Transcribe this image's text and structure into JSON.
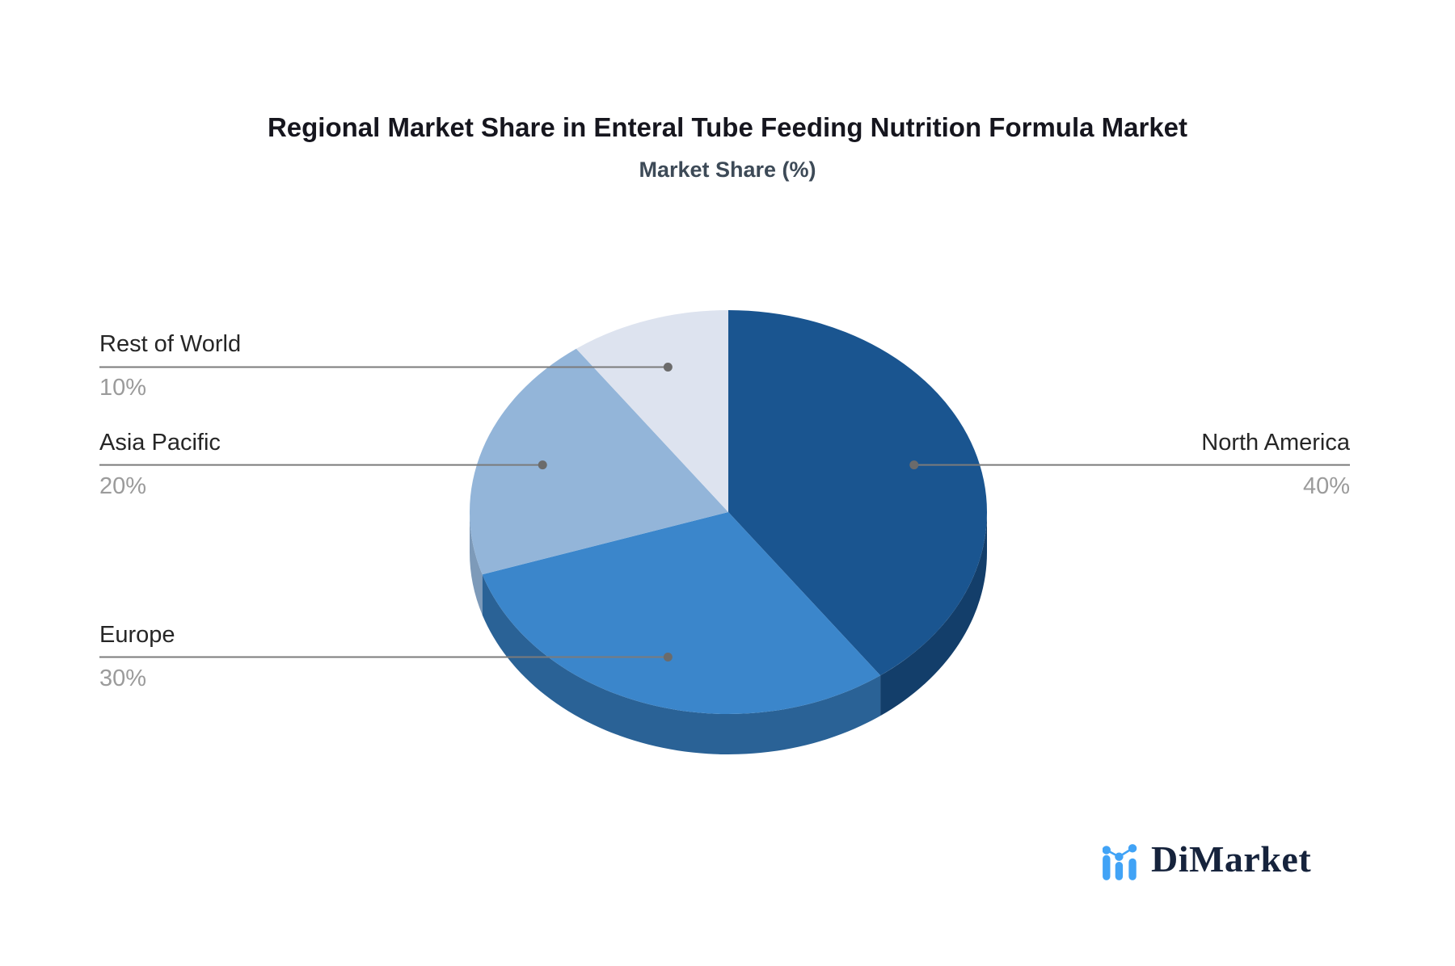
{
  "header": {
    "title": "Regional Market Share in Enteral Tube Feeding Nutrition Formula Market",
    "subtitle": "Market Share (%)"
  },
  "chart_data": {
    "type": "pie",
    "title": "Regional Market Share in Enteral Tube Feeding Nutrition Formula Market",
    "subtitle": "Market Share (%)",
    "unit": "%",
    "effect": "3d",
    "legend_position": "none",
    "labels_layout": "callout-lines",
    "start_angle_deg": 0,
    "direction": "clockwise",
    "categories": [
      "North America",
      "Europe",
      "Asia Pacific",
      "Rest of World"
    ],
    "values": [
      40,
      30,
      20,
      10
    ],
    "slices": [
      {
        "label": "North America",
        "value": 40,
        "display": "40%",
        "color": "#1a5590",
        "side_color": "#133e6a"
      },
      {
        "label": "Europe",
        "value": 30,
        "display": "30%",
        "color": "#3b86cb",
        "side_color": "#2a6296"
      },
      {
        "label": "Asia Pacific",
        "value": 20,
        "display": "20%",
        "color": "#93b5d9",
        "side_color": "#7d9ab9"
      },
      {
        "label": "Rest of World",
        "value": 10,
        "display": "10%",
        "color": "#dde3ef",
        "side_color": "#b9c3d6"
      }
    ],
    "callout_line_color": "#7b7b7b",
    "callout_dot_color": "#6b6b6b",
    "label_text_color": "#262626",
    "value_text_color": "#9b9b9b"
  },
  "branding": {
    "logo_text": "DiMarket",
    "logo_icon": "bar-chart-logo-icon",
    "logo_color": "#16233c",
    "logo_accent": "#41a3f6"
  }
}
